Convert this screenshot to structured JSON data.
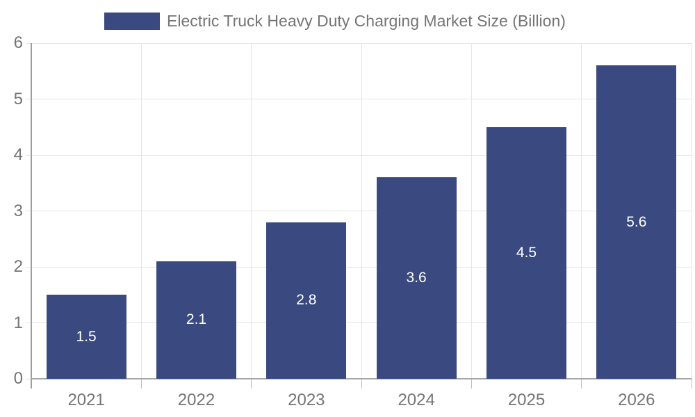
{
  "legend": {
    "label": "Electric Truck Heavy Duty Charging Market Size (Billion)",
    "swatch_color": "#3a4a80",
    "text_color": "#757575"
  },
  "chart_data": {
    "type": "bar",
    "title": "Electric Truck Heavy Duty Charging Market Size (Billion)",
    "categories": [
      "2021",
      "2022",
      "2023",
      "2024",
      "2025",
      "2026"
    ],
    "values": [
      1.5,
      2.1,
      2.8,
      3.6,
      4.5,
      5.6
    ],
    "value_labels": [
      "1.5",
      "2.1",
      "2.8",
      "3.6",
      "4.5",
      "5.6"
    ],
    "xlabel": "",
    "ylabel": "",
    "ylim": [
      0,
      6
    ],
    "yticks": [
      0,
      1,
      2,
      3,
      4,
      5,
      6
    ],
    "ytick_labels": [
      "0",
      "1",
      "2",
      "3",
      "4",
      "5",
      "6"
    ],
    "grid": true,
    "legend_position": "top",
    "bar_color": "#3a4a80",
    "value_label_color": "#ffffff",
    "axis_color": "#a6a6a6",
    "gridline_color": "#e5e5e5",
    "tick_label_color": "#757575"
  }
}
